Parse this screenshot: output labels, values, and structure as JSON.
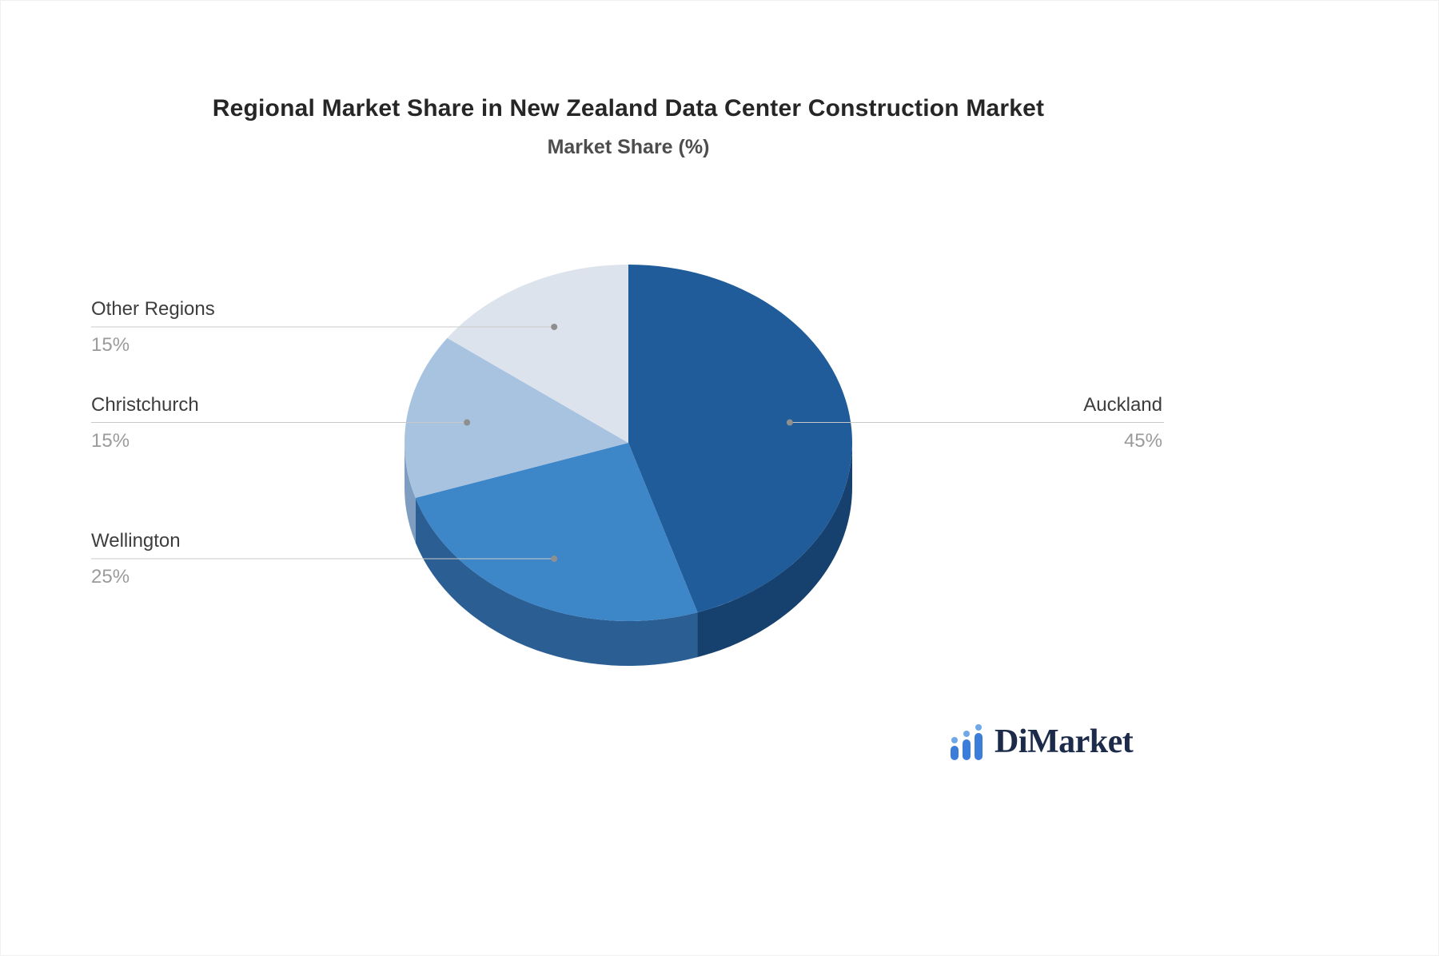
{
  "header": {
    "title": "Regional Market Share in New Zealand Data Center Construction Market",
    "subtitle": "Market Share (%)"
  },
  "brand": {
    "name": "DiMarket",
    "icon": "bar-chart-icon",
    "text_color": "#1c2b4a",
    "icon_color": "#3b7dd8"
  },
  "chart_data": {
    "type": "pie",
    "title": "Regional Market Share in New Zealand Data Center Construction Market",
    "subtitle": "Market Share (%)",
    "unit": "%",
    "start_angle_deg": -90,
    "direction": "clockwise",
    "style": "3d-pie",
    "leader_line_color": "#c9c9c9",
    "leader_dot_color": "#8f8f8f",
    "slices": [
      {
        "label": "Auckland",
        "value": 45,
        "color": "#1f5c99",
        "side_color": "#16416e",
        "label_side": "right"
      },
      {
        "label": "Wellington",
        "value": 25,
        "color": "#3d86c8",
        "side_color": "#2b5f94",
        "label_side": "left"
      },
      {
        "label": "Christchurch",
        "value": 15,
        "color": "#a7c3e0",
        "side_color": "#7e9dc0",
        "label_side": "left"
      },
      {
        "label": "Other Regions",
        "value": 15,
        "color": "#dde3ed",
        "side_color": "#b8c3d4",
        "label_side": "left"
      }
    ]
  }
}
